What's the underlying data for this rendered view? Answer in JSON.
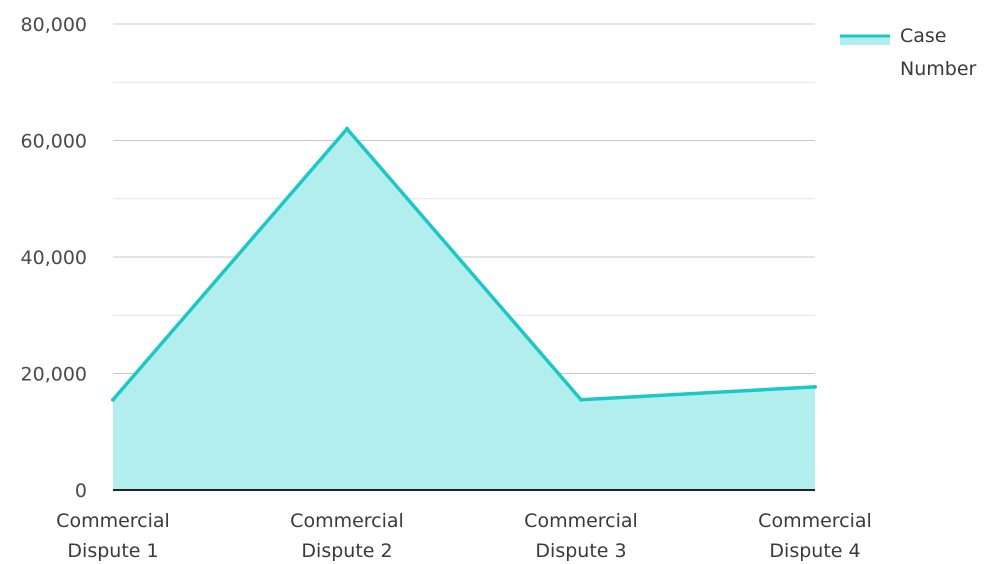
{
  "chart_data": {
    "type": "area",
    "categories": [
      [
        "Commercial",
        "Dispute 1"
      ],
      [
        "Commercial",
        "Dispute 2"
      ],
      [
        "Commercial",
        "Dispute 3"
      ],
      [
        "Commercial",
        "Dispute 4"
      ]
    ],
    "series": [
      {
        "name": [
          "Case",
          "Number"
        ],
        "values": [
          15500,
          62000,
          15500,
          17700
        ]
      }
    ],
    "ylim": [
      0,
      80000
    ],
    "yticks": [
      "0",
      "20,000",
      "40,000",
      "60,000",
      "80,000"
    ],
    "ytick_values": [
      0,
      20000,
      40000,
      60000,
      80000
    ],
    "grid": true,
    "legend_position": "top-right",
    "colors": {
      "line": "#1cc7c7",
      "fill": "#b2eeee",
      "grid_major": "#c8c8c8",
      "grid_minor": "#e4e4e4",
      "axis": "#222222"
    }
  }
}
